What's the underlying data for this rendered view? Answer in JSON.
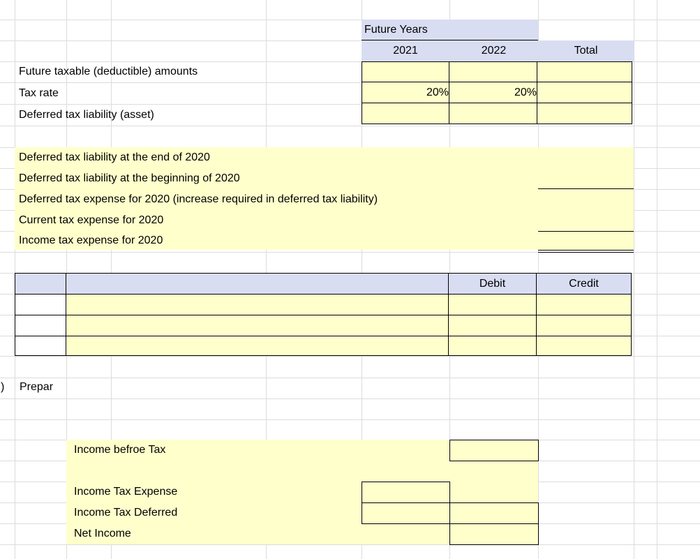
{
  "colors": {
    "header_fill": "#d9ddf2",
    "input_fill": "#ffffcc",
    "border": "#000000",
    "gridline": "#dcdcdc"
  },
  "top_section": {
    "row_labels": [
      "Future taxable (deductible) amounts",
      "Tax rate",
      "Deferred tax liability (asset)"
    ],
    "table": {
      "group_header": "Future Years",
      "columns": [
        "2021",
        "2022",
        "Total"
      ],
      "rows": [
        [
          "",
          "",
          ""
        ],
        [
          "20%",
          "20%",
          ""
        ],
        [
          "",
          "",
          ""
        ]
      ]
    }
  },
  "summary_section": {
    "lines": [
      "Deferred tax liability at the end of 2020",
      "Deferred tax liability at the beginning of 2020",
      "Deferred tax expense for 2020 (increase required in deferred tax liability)",
      "Current tax expense for 2020",
      "Income tax expense for 2020"
    ]
  },
  "journal_table": {
    "headers": [
      "",
      "",
      "Debit",
      "Credit"
    ],
    "rows": [
      [
        "",
        "",
        "",
        ""
      ],
      [
        "",
        "",
        "",
        ""
      ],
      [
        "",
        "",
        "",
        ""
      ]
    ]
  },
  "prepare_note": {
    "prefix": ")",
    "label": "Prepar"
  },
  "income_section": {
    "lines": [
      "Income befroe Tax",
      "Income Tax Expense",
      "Income Tax Deferred",
      "Net Income"
    ]
  }
}
